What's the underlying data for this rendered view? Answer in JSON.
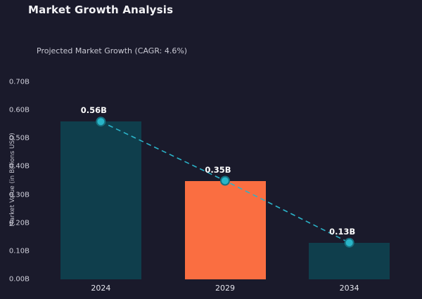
{
  "header": {
    "title": "Market Growth Analysis",
    "subtitle": "Projected Market Growth (CAGR: 4.6%)"
  },
  "chart_data": {
    "type": "bar",
    "title": "Market Growth Analysis",
    "subtitle": "Projected Market Growth (CAGR: 4.6%)",
    "categories": [
      "2024",
      "2029",
      "2034"
    ],
    "values": [
      0.56,
      0.35,
      0.13
    ],
    "value_labels": [
      "0.56B",
      "0.35B",
      "0.13B"
    ],
    "xlabel": "",
    "ylabel": "Market Value (in Billions USD)",
    "ylim": [
      0,
      0.7
    ],
    "y_ticks": [
      {
        "value": 0.0,
        "label": "0.00B"
      },
      {
        "value": 0.1,
        "label": "0.10B"
      },
      {
        "value": 0.2,
        "label": "0.20B"
      },
      {
        "value": 0.3,
        "label": "0.30B"
      },
      {
        "value": 0.4,
        "label": "0.40B"
      },
      {
        "value": 0.5,
        "label": "0.50B"
      },
      {
        "value": 0.6,
        "label": "0.60B"
      },
      {
        "value": 0.7,
        "label": "0.70B"
      }
    ],
    "grid": false,
    "legend": "none",
    "trendline": {
      "style": "dashed",
      "connects": "bar tops with circular markers"
    },
    "colors": {
      "background": "#1a1a2b",
      "bar_default": "#0f3e4c",
      "bar_highlight": "#fa6e41",
      "bar_colors": [
        "#0f3e4c",
        "#fa6e41",
        "#0f3e4c"
      ],
      "line": "#2bb3c9",
      "marker_fill": "#29b5c8",
      "marker_stroke": "#177180",
      "title_text": "#f2f2f5",
      "axis_text": "#cfcfda",
      "value_label_text": "#ffffff"
    }
  }
}
